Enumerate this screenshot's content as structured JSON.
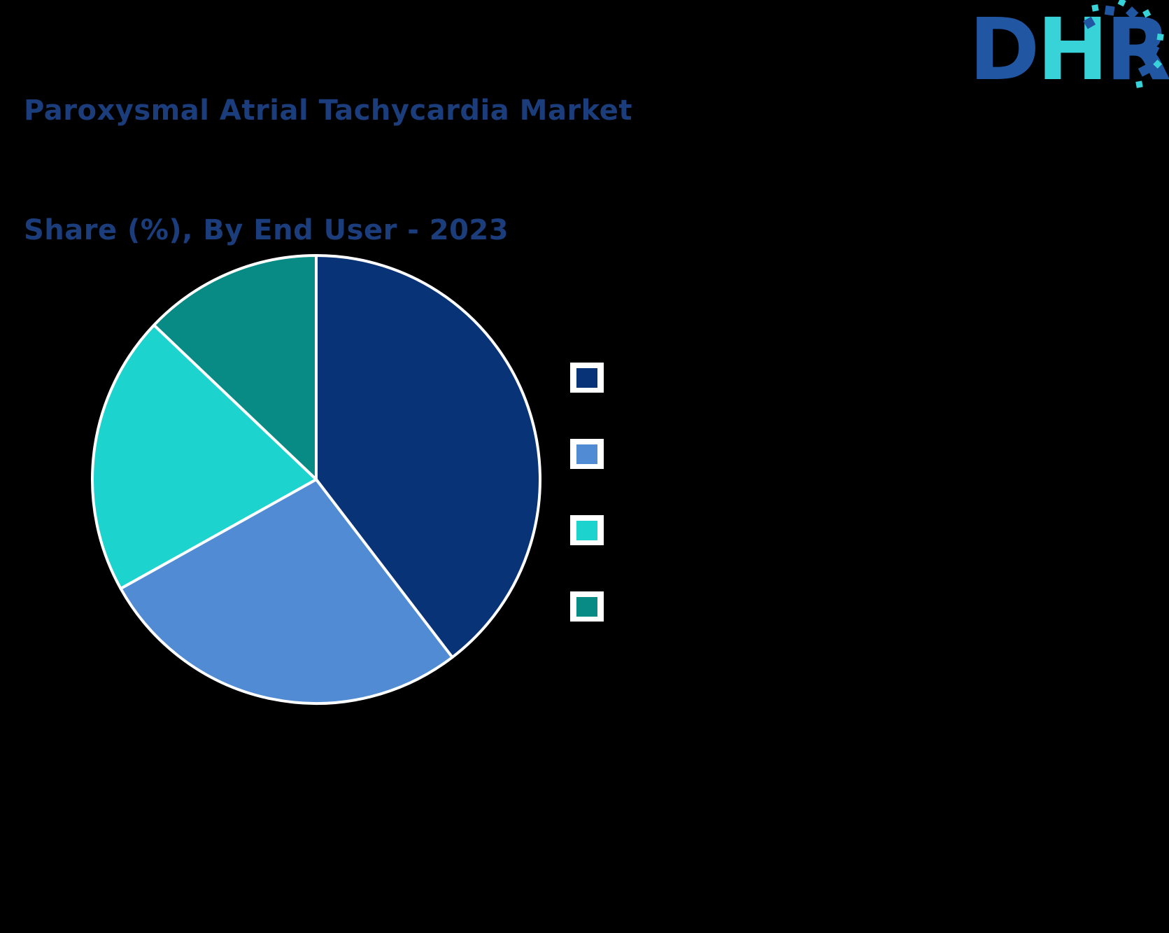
{
  "page": {
    "background_color": "#000000"
  },
  "header": {
    "title_line1": "Paroxysmal Atrial Tachycardia Market",
    "title_line2": "Share (%), By End User - 2023",
    "title_color": "#1c3d7c"
  },
  "logo": {
    "letter_d": "D",
    "letter_h": "H",
    "letter_r": "R",
    "letter_d_color": "#2156a2",
    "letter_h_color": "#38d3d8",
    "letter_r_color": "#2156a2",
    "burst_color_a": "#2156a2",
    "burst_color_b": "#38d3d8"
  },
  "chart_data": {
    "type": "pie",
    "title": "Paroxysmal Atrial Tachycardia Market Share (%), By End User - 2023",
    "categories": [
      "",
      "",
      "",
      ""
    ],
    "values": [
      39.6,
      27.3,
      20.2,
      12.9
    ],
    "colors": [
      "#093377",
      "#508bd4",
      "#1dd3cd",
      "#088b84"
    ],
    "start_angle_deg": 0,
    "direction": "clockwise",
    "slice_border_color": "#ffffff",
    "slice_border_width": 4,
    "legend_position": "right",
    "legend_labels_visible": false,
    "legend_swatch_colors": [
      "#093377",
      "#508bd4",
      "#1dd3cd",
      "#088b84"
    ],
    "legend_swatch_border_color": "#ffffff"
  }
}
